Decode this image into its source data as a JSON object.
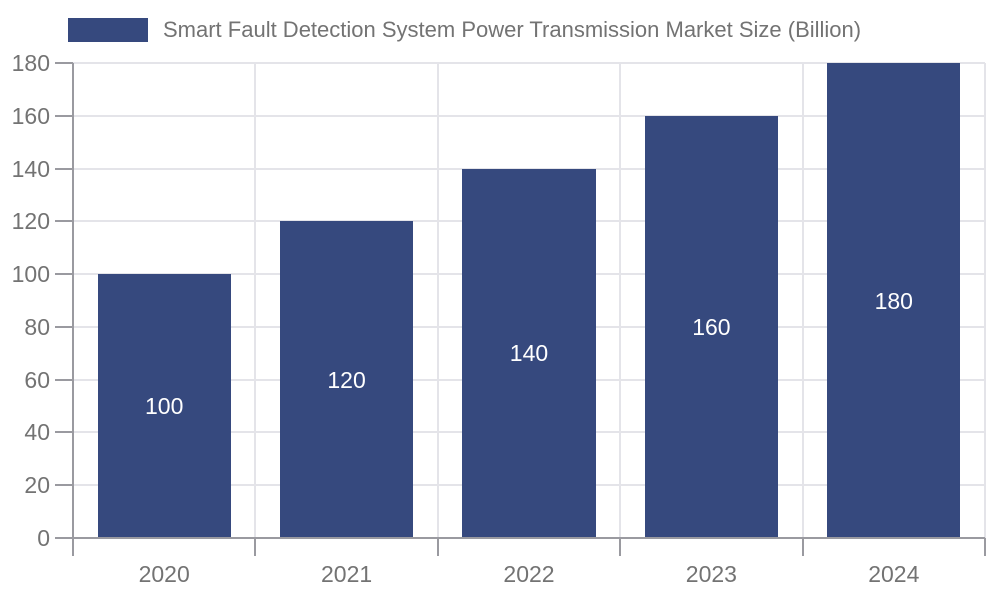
{
  "legend": {
    "label": "Smart Fault Detection System Power Transmission Market Size (Billion)"
  },
  "chart_data": {
    "type": "bar",
    "title": "Smart Fault Detection System Power Transmission Market Size (Billion)",
    "categories": [
      "2020",
      "2021",
      "2022",
      "2023",
      "2024"
    ],
    "values": [
      100,
      120,
      140,
      160,
      180
    ],
    "series": [
      {
        "name": "Smart Fault Detection System Power Transmission Market Size (Billion)",
        "values": [
          100,
          120,
          140,
          160,
          180
        ]
      }
    ],
    "xlabel": "",
    "ylabel": "",
    "ylim": [
      0,
      180
    ],
    "ytick_step": 20,
    "ytick_labels": [
      "0",
      "20",
      "40",
      "60",
      "80",
      "100",
      "120",
      "140",
      "160",
      "180"
    ],
    "grid": true,
    "legend_position": "top-left",
    "value_labels": "inside-center",
    "colors": {
      "bar": "#36497e",
      "value_label": "#ffffff",
      "axis": "#9a9aa0",
      "grid": "#e4e4e9",
      "text": "#737373"
    }
  }
}
